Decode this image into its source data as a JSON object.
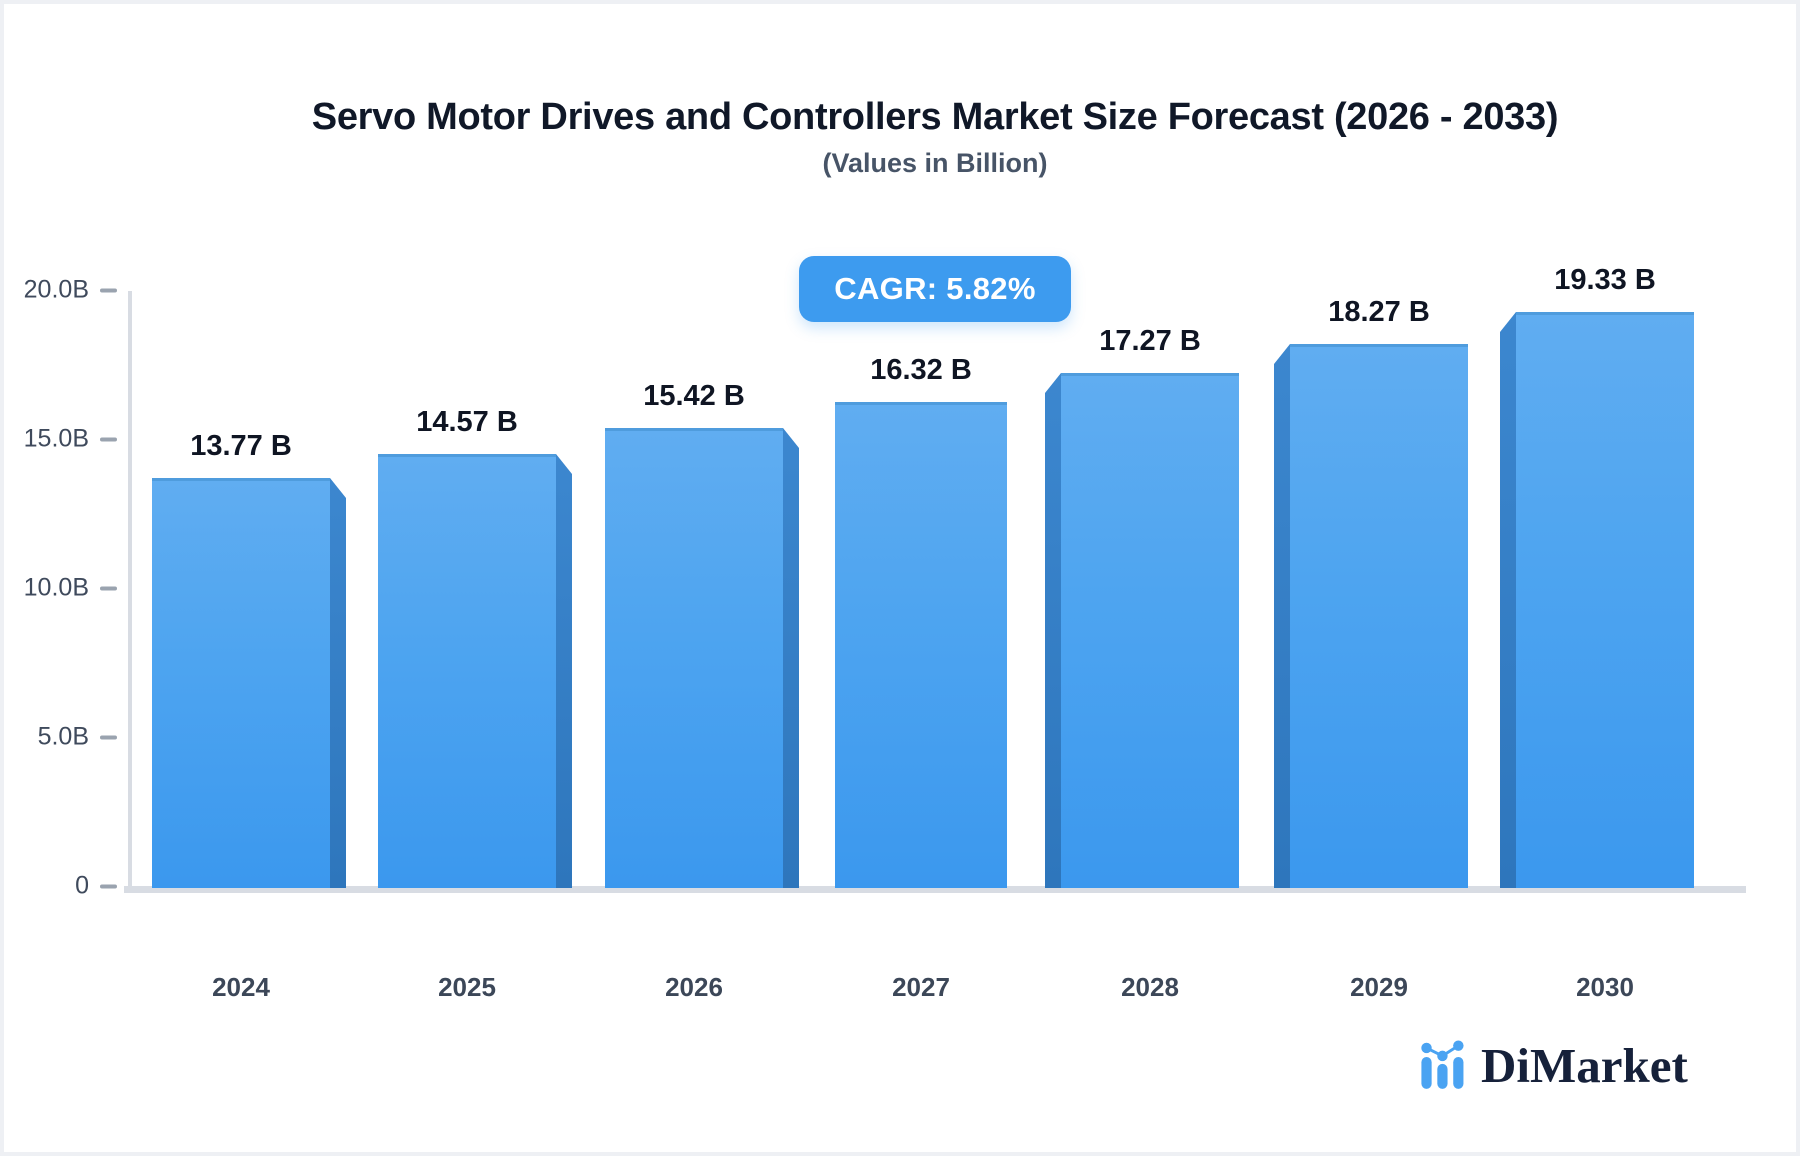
{
  "title": "Servo Motor Drives and Controllers Market Size Forecast (2026 - 2033)",
  "subtitle": "(Values in Billion)",
  "cagr_badge": "CAGR: 5.82%",
  "chart_data": {
    "type": "bar",
    "title": "Servo Motor Drives and Controllers Market Size Forecast (2026 - 2033)",
    "subtitle": "(Values in Billion)",
    "cagr": "5.82%",
    "categories": [
      "2024",
      "2025",
      "2026",
      "2027",
      "2028",
      "2029",
      "2030"
    ],
    "values": [
      13.77,
      14.57,
      15.42,
      16.32,
      17.27,
      18.27,
      19.33
    ],
    "value_labels": [
      "13.77 B",
      "14.57 B",
      "15.42 B",
      "16.32 B",
      "17.27 B",
      "18.27 B",
      "19.33 B"
    ],
    "unit": "Billion",
    "ylim": [
      0,
      20
    ],
    "ytick_labels": [
      "20.0B",
      "15.0B",
      "10.0B",
      "5.0B",
      "0"
    ],
    "grid": false,
    "legend": "none",
    "bar_face_color": "#45a0ef",
    "bar_side_color": "#2f77bd"
  },
  "branding": {
    "name": "DiMarket",
    "icon": "bar-line-chart-logo",
    "icon_color": "#4aa3f2",
    "text_color": "#16213a"
  },
  "colors": {
    "badge_bg": "#3d9bef",
    "badge_text": "#ffffff",
    "title_text": "#101828",
    "subtitle_text": "#475467",
    "axis_line": "#d8dce3",
    "tick_text": "#3f4a5c",
    "value_text": "#0f1523",
    "year_text": "#3c4758",
    "background": "#ffffff"
  }
}
